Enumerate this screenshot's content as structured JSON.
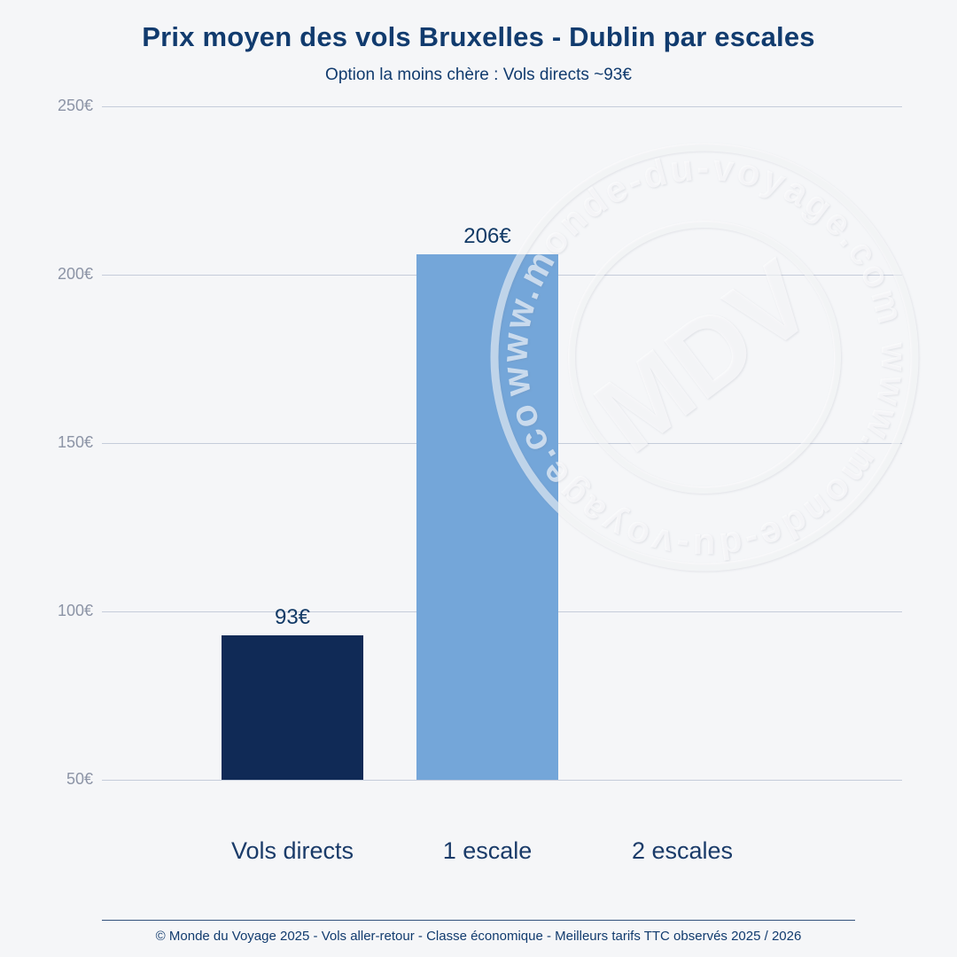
{
  "header": {
    "title": "Prix moyen des vols Bruxelles - Dublin par escales",
    "subtitle": "Option la moins chère : Vols directs ~93€"
  },
  "watermark": {
    "circle_text": "www.monde-du-voyage.com",
    "center_text": "MDV"
  },
  "footer": {
    "text": "© Monde du Voyage 2025 - Vols aller-retour - Classe économique - Meilleurs tarifs TTC observés 2025 / 2026"
  },
  "chart_data": {
    "type": "bar",
    "title": "Prix moyen des vols Bruxelles - Dublin par escales",
    "subtitle": "Option la moins chère : Vols directs ~93€",
    "categories": [
      "Vols directs",
      "1 escale",
      "2 escales"
    ],
    "values": [
      93,
      206,
      null
    ],
    "value_labels": [
      "93€",
      "206€",
      null
    ],
    "unit": "€",
    "ylim": [
      50,
      250
    ],
    "yticks": [
      50,
      100,
      150,
      200,
      250
    ],
    "grid": true,
    "legend": false,
    "bar_colors": [
      "#102a56",
      "#74a6d9",
      null
    ],
    "background": "#f5f6f8",
    "gridline_color": "#c5ccda",
    "label_color": "#113b6e"
  }
}
